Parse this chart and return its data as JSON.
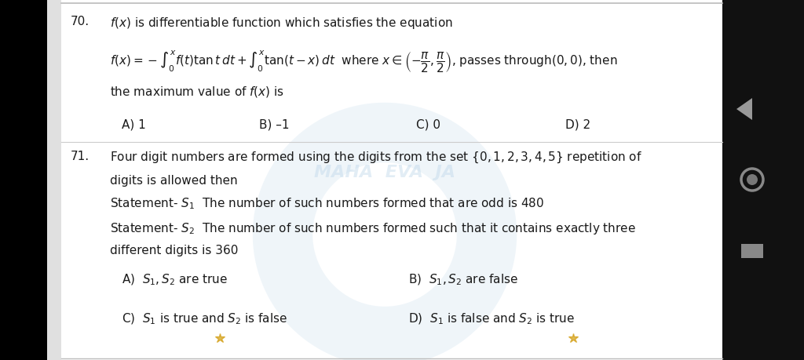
{
  "bg_color": "#000000",
  "left_panel_color": "#e8e8e8",
  "content_bg": "#ffffff",
  "right_panel_color": "#000000",
  "text_color": "#1a1a1a",
  "border_color": "#cccccc",
  "watermark_color": "#b8d4e8",
  "watermark_alpha": 0.35,
  "q70_num": "70.",
  "q70_header": "$f(x)$ is differentiable function which satisfies the equation",
  "q70_eq": "$f(x) = -\\int_0^x f(t)\\tan t\\,dt + \\int_0^x \\tan(t-x)\\,dt$  where $x \\in \\left(-\\dfrac{\\pi}{2}, \\dfrac{\\pi}{2}\\right)$, passes through$(0,0)$, then",
  "q70_text2": "the maximum value of $f(x)$ is",
  "q70_A": "A) 1",
  "q70_B": "B) –1",
  "q70_C": "C) 0",
  "q70_D": "D) 2",
  "q71_num": "71.",
  "q71_line1": "Four digit numbers are formed using the digits from the set $\\{0,1,2,3,4,5\\}$ repetition of",
  "q71_line2": "digits is allowed then",
  "q71_s1": "Statement- $S_1$  The number of such numbers formed that are odd is 480",
  "q71_s2": "Statement- $S_2$  The number of such numbers formed such that it contains exactly three",
  "q71_s2b": "different digits is 360",
  "q71_A": "A)  $S_1, S_2$ are true",
  "q71_B": "B)  $S_1, S_2$ are false",
  "q71_C": "C)  $S_1$ is true and $S_2$ is false",
  "q71_D": "D)  $S_1$ is false and $S_2$ is true",
  "wm_text": "MAHA  EVA  JA",
  "star_color": "#d4a017"
}
